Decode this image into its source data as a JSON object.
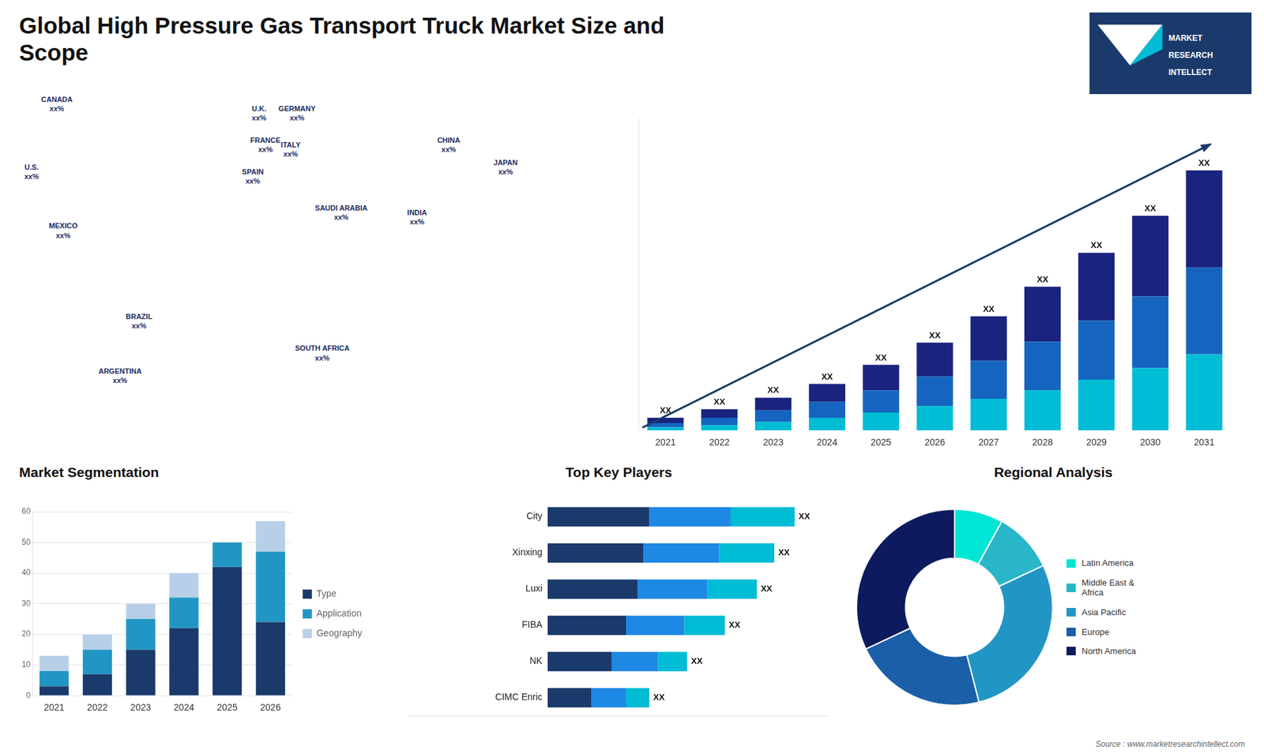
{
  "title": "Global High Pressure Gas Transport Truck Market Size and\nScope",
  "source": "Source : www.marketresearchintellect.com",
  "logo_text": [
    "MARKET",
    "RESEARCH",
    "INTELLECT"
  ],
  "chart_data": [
    {
      "type": "map",
      "annotations": [
        "CANADA\nxx%",
        "U.S.\nxx%",
        "MEXICO\nxx%",
        "BRAZIL\nxx%",
        "ARGENTINA\nxx%",
        "U.K.\nxx%",
        "FRANCE\nxx%",
        "SPAIN\nxx%",
        "GERMANY\nxx%",
        "ITALY\nxx%",
        "SAUDI ARABIA\nxx%",
        "SOUTH AFRICA\nxx%",
        "CHINA\nxx%",
        "INDIA\nxx%",
        "JAPAN\nxx%"
      ]
    },
    {
      "type": "bar",
      "stacked": true,
      "categories": [
        "2021",
        "2022",
        "2023",
        "2024",
        "2025",
        "2026",
        "2027",
        "2028",
        "2029",
        "2030",
        "2031"
      ],
      "series": [
        {
          "color": "#00bcd4",
          "values": [
            1.5,
            2.5,
            4.0,
            6.0,
            8.5,
            11.5,
            15.0,
            19.0,
            24.0,
            29.5,
            36.0
          ]
        },
        {
          "color": "#1565c0",
          "values": [
            2.0,
            3.5,
            5.5,
            7.5,
            10.5,
            14.0,
            18.0,
            23.0,
            28.0,
            34.0,
            41.0
          ]
        },
        {
          "color": "#1a237e",
          "values": [
            2.5,
            4.0,
            6.0,
            8.5,
            12.0,
            16.0,
            21.0,
            26.0,
            32.0,
            38.0,
            46.0
          ]
        }
      ],
      "ylim": [
        0,
        147.6
      ],
      "tick_labels": "x",
      "grid": false,
      "annotations": [
        {
          "category": "2021",
          "text": "XX"
        },
        {
          "category": "2022",
          "text": "XX"
        },
        {
          "category": "2023",
          "text": "XX"
        },
        {
          "category": "2024",
          "text": "XX"
        },
        {
          "category": "2025",
          "text": "XX"
        },
        {
          "category": "2026",
          "text": "XX"
        },
        {
          "category": "2027",
          "text": "XX"
        },
        {
          "category": "2028",
          "text": "XX"
        },
        {
          "category": "2029",
          "text": "XX"
        },
        {
          "category": "2030",
          "text": "XX"
        },
        {
          "category": "2031",
          "text": "XX"
        }
      ]
    },
    {
      "type": "bar",
      "title": "Market Segmentation",
      "stacked": true,
      "categories": [
        "2021",
        "2022",
        "2023",
        "2024",
        "2025",
        "2026"
      ],
      "series": [
        {
          "name": "Type",
          "color": "#1a3a6b",
          "values": [
            3,
            7,
            15,
            22,
            42,
            24
          ]
        },
        {
          "name": "Application",
          "color": "#2196c4",
          "values": [
            5,
            8,
            10,
            10,
            8,
            23
          ]
        },
        {
          "name": "Geography",
          "color": "#b8cfe8",
          "values": [
            5,
            5,
            5,
            8,
            0,
            10
          ]
        }
      ],
      "ylim": [
        0,
        60
      ],
      "yticks": [
        0,
        10,
        20,
        30,
        40,
        50,
        60
      ],
      "grid": true,
      "legend": "right"
    },
    {
      "type": "bar",
      "title": "Top Key Players",
      "orientation": "horizontal",
      "stacked": true,
      "categories": [
        "City",
        "Xinxing",
        "Luxi",
        "FIBA",
        "NK",
        "CIMC Enric"
      ],
      "series": [
        {
          "color": "#1a3a6b",
          "values": [
            35,
            33,
            31,
            27,
            22,
            15
          ]
        },
        {
          "color": "#1e88e5",
          "values": [
            28,
            26,
            24,
            20,
            16,
            12
          ]
        },
        {
          "color": "#00bcd4",
          "values": [
            22,
            19,
            17,
            14,
            10,
            8
          ]
        }
      ],
      "xlim": [
        -48,
        97
      ],
      "tick_labels": false,
      "grid": false,
      "annotations": [
        {
          "category": "City",
          "text": "XX"
        },
        {
          "category": "Xinxing",
          "text": "XX"
        },
        {
          "category": "Luxi",
          "text": "XX"
        },
        {
          "category": "FIBA",
          "text": "XX"
        },
        {
          "category": "NK",
          "text": "XX"
        },
        {
          "category": "CIMC Enric",
          "text": "XX"
        }
      ]
    },
    {
      "type": "doughnut",
      "title": "Regional Analysis",
      "categories": [
        "Latin America",
        "Middle East &\nAfrica",
        "Asia Pacific",
        "Europe",
        "North America"
      ],
      "values": [
        8,
        10,
        28,
        22,
        32
      ],
      "colors": [
        "#00e5d4",
        "#29b6c8",
        "#2196c4",
        "#1a5fa8",
        "#0d1b5e"
      ],
      "legend": "right"
    }
  ]
}
